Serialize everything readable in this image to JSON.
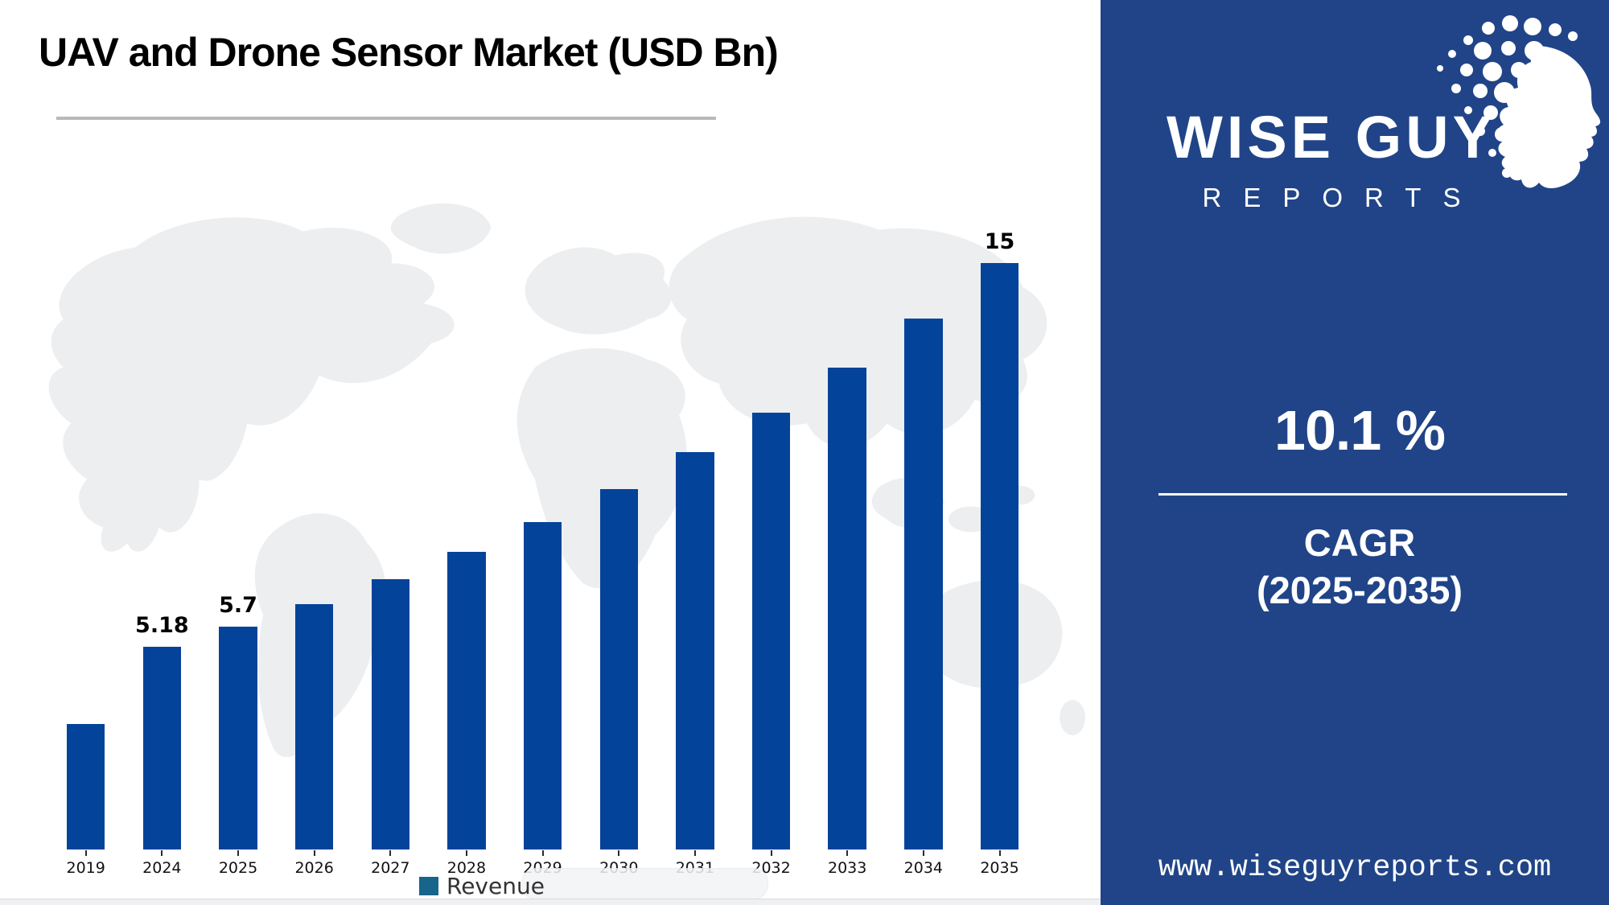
{
  "chart_data": {
    "type": "bar",
    "title": "UAV and Drone Sensor Market (USD Bn)",
    "categories": [
      "2019",
      "2024",
      "2025",
      "2026",
      "2027",
      "2028",
      "2029",
      "2030",
      "2031",
      "2032",
      "2033",
      "2034",
      "2035"
    ],
    "values": [
      3.2,
      5.18,
      5.7,
      6.28,
      6.91,
      7.61,
      8.38,
      9.22,
      10.16,
      11.18,
      12.32,
      13.57,
      15
    ],
    "data_labels": [
      "",
      "5.18",
      "5.7",
      "",
      "",
      "",
      "",
      "",
      "",
      "",
      "",
      "",
      "15"
    ],
    "xlabel": "",
    "ylabel": "",
    "ylim": [
      0,
      16
    ],
    "grid": false,
    "bar_color": "#04439a",
    "legend": {
      "entries": [
        "Revenue"
      ],
      "position": "bottom-center",
      "swatch_color": "#17658a"
    },
    "background_watermark": "light-gray-world-map"
  },
  "brand_panel": {
    "background_color": "#204487",
    "logo": {
      "line1": "WISE GUY",
      "line2": "REPORTS",
      "mark": "dotted-head-silhouette"
    },
    "cagr": {
      "value": "10.1 %",
      "label_line1": "CAGR",
      "label_line2": "(2025-2035)"
    },
    "website": "www.wiseguyreports.com"
  }
}
